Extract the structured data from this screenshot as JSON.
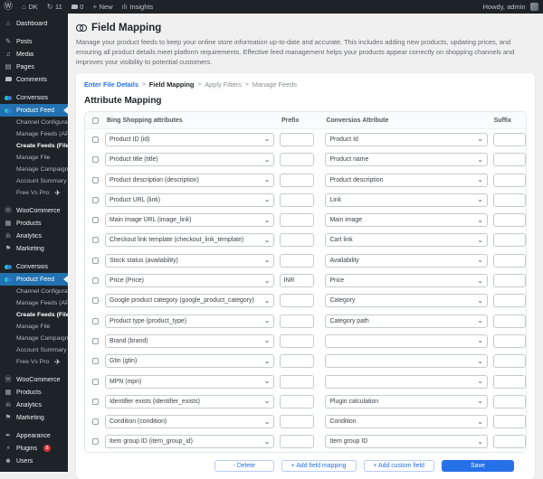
{
  "admin_bar": {
    "site_name": "DK",
    "updates_count": "11",
    "comments_count": "0",
    "new_label": "New",
    "insights_label": "Insights",
    "howdy": "Howdy, admin"
  },
  "icons": {
    "wp": "Ⓦ",
    "home": "⌂",
    "updates": "↻",
    "plus": "+",
    "dashboard": "⌂",
    "posts": "✎",
    "media": "♫",
    "pages": "▤",
    "woocommerce": "Ⓦ",
    "products": "▦",
    "analytics": "ılı",
    "marketing": "⚑",
    "appearance": "✒",
    "plugins": "⚡",
    "users": "☻",
    "rocket": "✈",
    "chevron_down": "⌄",
    "breadcrumb_sep": ">"
  },
  "sidebar": {
    "items": [
      {
        "label": "Dashboard",
        "icon": "dashboard",
        "type": "top"
      },
      {
        "label": "Posts",
        "icon": "posts",
        "type": "top",
        "gap": true
      },
      {
        "label": "Media",
        "icon": "media",
        "type": "top"
      },
      {
        "label": "Pages",
        "icon": "pages",
        "type": "top"
      },
      {
        "label": "Comments",
        "icon": "comments",
        "type": "top"
      },
      {
        "label": "Conversios",
        "icon": "conversios-logo",
        "type": "top",
        "gap": true
      },
      {
        "label": "Product Feed",
        "icon": "conversios-logo",
        "type": "top",
        "selected": true
      },
      {
        "label": "Channel Configuration",
        "type": "sub"
      },
      {
        "label": "Manage Feeds (API)",
        "type": "sub"
      },
      {
        "label": "Create Feeds (File)",
        "type": "sub",
        "current": true
      },
      {
        "label": "Manage File",
        "type": "sub"
      },
      {
        "label": "Manage Campaign",
        "type": "sub"
      },
      {
        "label": "Account Summary",
        "type": "sub"
      },
      {
        "label": "Free Vs Pro",
        "type": "sub",
        "trailing_icon": "rocket"
      },
      {
        "label": "WooCommerce",
        "icon": "woocommerce",
        "type": "top",
        "gap": true
      },
      {
        "label": "Products",
        "icon": "products",
        "type": "top"
      },
      {
        "label": "Analytics",
        "icon": "analytics",
        "type": "top"
      },
      {
        "label": "Marketing",
        "icon": "marketing",
        "type": "top"
      },
      {
        "label": "Conversios",
        "icon": "conversios-logo",
        "type": "top",
        "gap": true
      },
      {
        "label": "Product Feed",
        "icon": "conversios-logo",
        "type": "top",
        "selected": true
      },
      {
        "label": "Channel Configuration",
        "type": "sub"
      },
      {
        "label": "Manage Feeds (API)",
        "type": "sub"
      },
      {
        "label": "Create Feeds (File)",
        "type": "sub",
        "current": true
      },
      {
        "label": "Manage File",
        "type": "sub"
      },
      {
        "label": "Manage Campaign",
        "type": "sub"
      },
      {
        "label": "Account Summary",
        "type": "sub"
      },
      {
        "label": "Free Vs Pro",
        "type": "sub",
        "trailing_icon": "rocket"
      },
      {
        "label": "WooCommerce",
        "icon": "woocommerce",
        "type": "top",
        "gap": true
      },
      {
        "label": "Products",
        "icon": "products",
        "type": "top"
      },
      {
        "label": "Analytics",
        "icon": "analytics",
        "type": "top"
      },
      {
        "label": "Marketing",
        "icon": "marketing",
        "type": "top"
      },
      {
        "label": "Appearance",
        "icon": "appearance",
        "type": "top",
        "gap": true
      },
      {
        "label": "Plugins",
        "icon": "plugins",
        "type": "top",
        "badge": "8"
      },
      {
        "label": "Users",
        "icon": "users",
        "type": "top"
      }
    ]
  },
  "page": {
    "title": "Field Mapping",
    "description": "Manage your product feeds to keep your online store information up-to-date and accurate. This includes adding new products, updating prices, and ensuring all product details meet platform requirements. Effective feed management helps your products appear correctly on shopping channels and improves your visibility to potential customers.",
    "breadcrumb": [
      {
        "label": "Enter File Details",
        "state": "link"
      },
      {
        "label": "Field Mapping",
        "state": "current"
      },
      {
        "label": "Apply Filters",
        "state": "upcoming"
      },
      {
        "label": "Manage Feeds",
        "state": "upcoming"
      }
    ],
    "section_title": "Attribute Mapping"
  },
  "table": {
    "headers": [
      "Bing Shopping attributes",
      "Prefix",
      "Conversios Attribute",
      "Suffix"
    ],
    "rows": [
      {
        "bing": "Product ID (id)",
        "prefix": "",
        "conversios": "Product Id",
        "suffix": ""
      },
      {
        "bing": "Product title (title)",
        "prefix": "",
        "conversios": "Product name",
        "suffix": ""
      },
      {
        "bing": "Product description (description)",
        "prefix": "",
        "conversios": "Product description",
        "suffix": ""
      },
      {
        "bing": "Product URL (link)",
        "prefix": "",
        "conversios": "Link",
        "suffix": ""
      },
      {
        "bing": "Main image URL (image_link)",
        "prefix": "",
        "conversios": "Main image",
        "suffix": ""
      },
      {
        "bing": "Checkout link template (checkout_link_template)",
        "prefix": "",
        "conversios": "Cart link",
        "suffix": ""
      },
      {
        "bing": "Stock status (availability)",
        "prefix": "",
        "conversios": "Availability",
        "suffix": ""
      },
      {
        "bing": "Price (Price)",
        "prefix": "INR",
        "conversios": "Price",
        "suffix": ""
      },
      {
        "bing": "Google product category (google_product_category)",
        "prefix": "",
        "conversios": "Category",
        "suffix": ""
      },
      {
        "bing": "Product type (product_type)",
        "prefix": "",
        "conversios": "Category path",
        "suffix": ""
      },
      {
        "bing": "Brand (brand)",
        "prefix": "",
        "conversios": "",
        "suffix": ""
      },
      {
        "bing": "Gtin (gtin)",
        "prefix": "",
        "conversios": "",
        "suffix": ""
      },
      {
        "bing": "MPN (mpn)",
        "prefix": "",
        "conversios": "",
        "suffix": ""
      },
      {
        "bing": "Identifier exists (identifier_exists)",
        "prefix": "",
        "conversios": "Plugin calculation",
        "suffix": ""
      },
      {
        "bing": "Condition (condition)",
        "prefix": "",
        "conversios": "Condition",
        "suffix": ""
      },
      {
        "bing": "Item group ID (item_group_id)",
        "prefix": "",
        "conversios": "Item group ID",
        "suffix": ""
      }
    ]
  },
  "footer_buttons": {
    "delete": "- Delete",
    "add_field_mapping": "+ Add field mapping",
    "add_custom_field": "+ Add custom field",
    "save": "Save"
  },
  "colors": {
    "wp_dark": "#1d2327",
    "wp_selected_blue": "#2271b1",
    "accent_blue": "#2671e8",
    "badge_red": "#d63638",
    "logo_teal": "#1ec6d1",
    "logo_blue": "#3a7bd5",
    "page_bg": "#f0f0f1"
  }
}
